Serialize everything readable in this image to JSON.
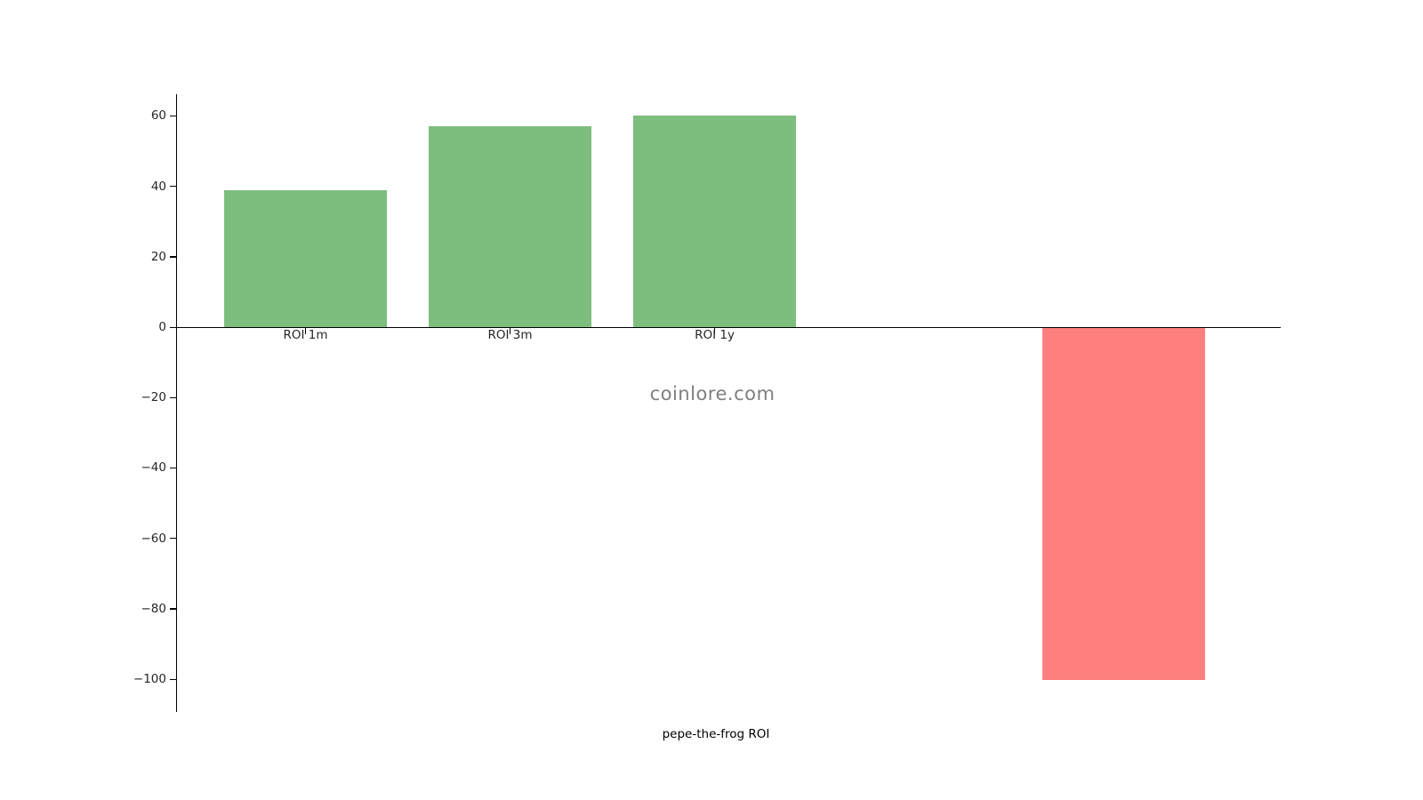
{
  "chart_data": {
    "type": "bar",
    "title": "pepe-the-frog ROI",
    "watermark": "coinlore.com",
    "categories": [
      "ROI 1m",
      "ROI 3m",
      "ROI 1y",
      "",
      ""
    ],
    "values": [
      39,
      57,
      60,
      null,
      -100
    ],
    "bar_colors": [
      "#7dbe7f",
      "#7dbe7f",
      "#7dbe7f",
      null,
      "#ff7f7f"
    ],
    "positive_color": "#7dbe7f",
    "negative_color": "#ff7f7f",
    "y_ticks": [
      60,
      40,
      20,
      0,
      -20,
      -40,
      -60,
      -80,
      -100
    ],
    "ylim": [
      -110,
      66
    ],
    "xlabel": "",
    "ylabel": "",
    "grid": false,
    "legend": false,
    "axis_color": "#000000",
    "tick_label_color": "#262626",
    "watermark_color": "#7f7f7f"
  }
}
